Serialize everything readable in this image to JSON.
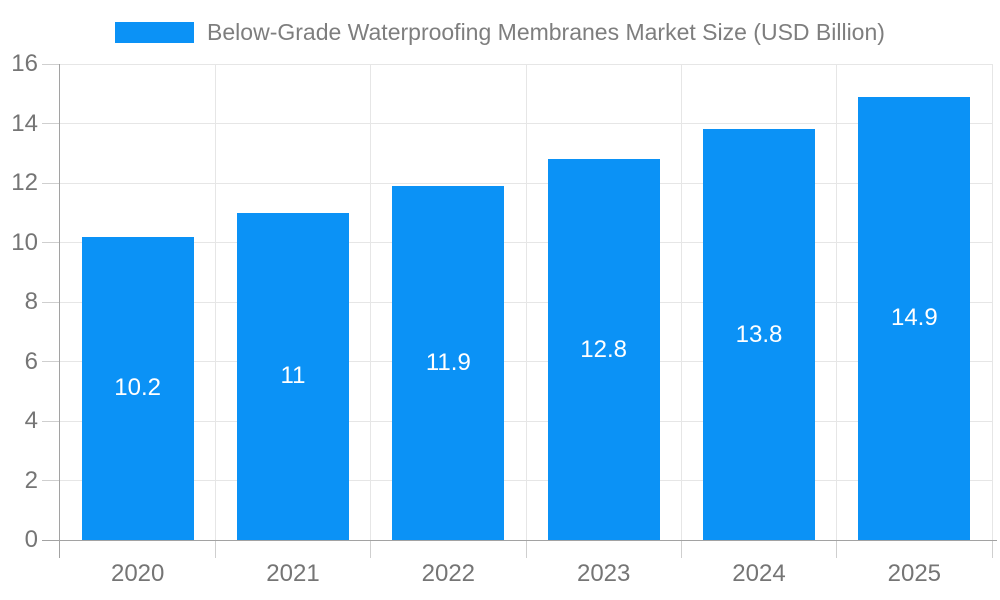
{
  "chart_data": {
    "type": "bar",
    "title": "Below-Grade Waterproofing Membranes Market Size (USD Billion)",
    "legend": {
      "position": "top",
      "entries": [
        {
          "label": "Below-Grade Waterproofing Membranes Market Size (USD Billion)",
          "color": "#0b92f6"
        }
      ]
    },
    "categories": [
      "2020",
      "2021",
      "2022",
      "2023",
      "2024",
      "2025"
    ],
    "values": [
      10.2,
      11,
      11.9,
      12.8,
      13.8,
      14.9
    ],
    "bar_labels": [
      "10.2",
      "11",
      "11.9",
      "12.8",
      "13.8",
      "14.9"
    ],
    "xlabel": "",
    "ylabel": "",
    "ylim": [
      0,
      16
    ],
    "yticks": [
      0,
      2,
      4,
      6,
      8,
      10,
      12,
      14,
      16
    ],
    "grid": true,
    "colors": {
      "bar": "#0b92f6",
      "bar_label": "#ffffff",
      "grid_line": "#e6e6e6",
      "axis_line": "#a2a2a2",
      "tick_mark": "#cfcfcf",
      "tick_text": "#757575",
      "title_text": "#7e7e7e",
      "background": "#ffffff"
    }
  }
}
